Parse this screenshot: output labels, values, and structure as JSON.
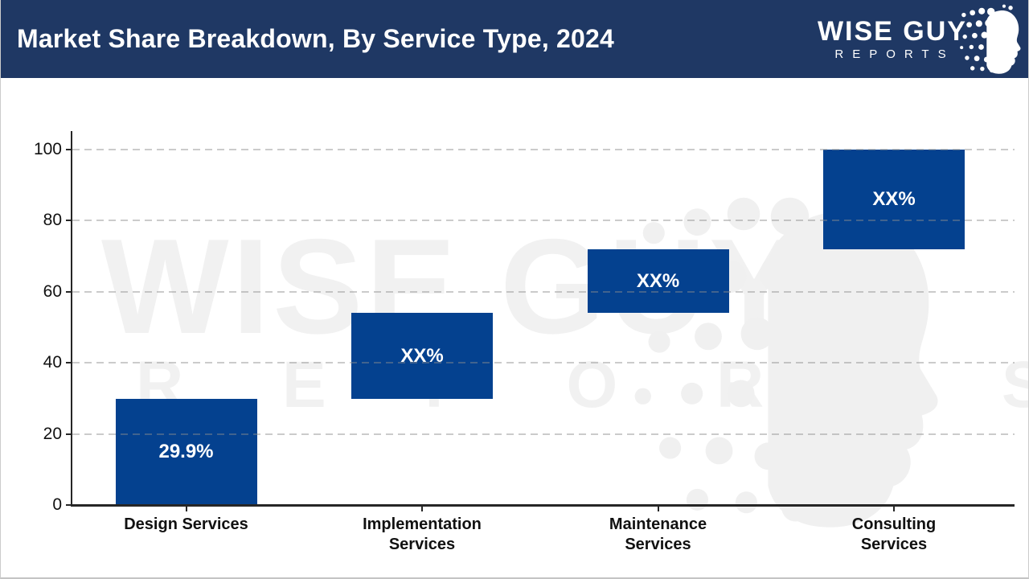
{
  "header": {
    "title": "Market Share Breakdown, By Service Type, 2024",
    "logo": {
      "line1": "WISE GUY",
      "line2": "REPORTS"
    }
  },
  "watermark": {
    "line1": "WISE GUY",
    "line2": "R E P O R T S"
  },
  "colors": {
    "header_bg": "#1f3864",
    "bar": "#04418f",
    "axis": "#262626",
    "gridline": "#d9d9d9",
    "bar_label_text": "#ffffff",
    "watermark": "#f1f1f1",
    "page_border": "#cccccc"
  },
  "chart_data": {
    "type": "bar",
    "subtype": "waterfall",
    "title": "Market Share Breakdown, By Service Type, 2024",
    "categories": [
      "Design Services",
      "Implementation Services",
      "Maintenance Services",
      "Consulting Services"
    ],
    "series": [
      {
        "name": "Market Share (%)",
        "bases": [
          0,
          29.9,
          54,
          72
        ],
        "tops": [
          29.9,
          54,
          72,
          100
        ]
      }
    ],
    "bar_labels": [
      "29.9%",
      "XX%",
      "XX%",
      "XX%"
    ],
    "xlabel": "",
    "ylabel": "",
    "ylim": [
      0,
      100
    ],
    "yticks": [
      0,
      20,
      40,
      60,
      80,
      100
    ],
    "grid": "dashed-horizontal",
    "legend": "none"
  }
}
